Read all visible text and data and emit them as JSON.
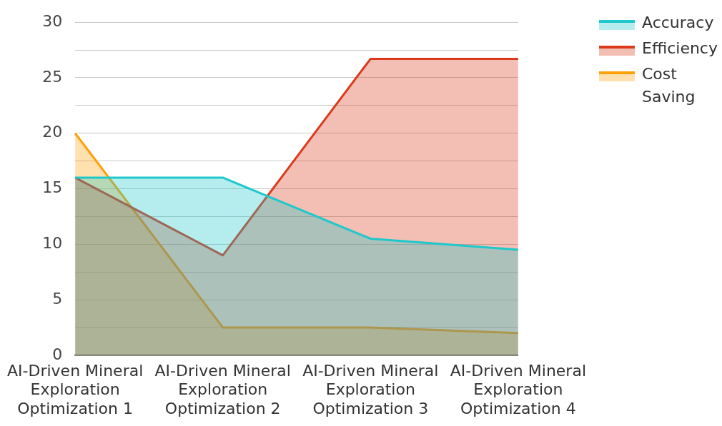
{
  "chart_data": {
    "type": "area",
    "categories": [
      "AI-Driven Mineral Exploration Optimization 1",
      "AI-Driven Mineral Exploration Optimization 2",
      "AI-Driven Mineral Exploration Optimization 3",
      "AI-Driven Mineral Exploration Optimization 4"
    ],
    "series": [
      {
        "name": "Accuracy",
        "color": "#1ec8cc",
        "values": [
          16,
          16,
          10.5,
          9.5
        ]
      },
      {
        "name": "Efficiency",
        "color": "#dc3a1c",
        "values": [
          16,
          9,
          26.7,
          26.7
        ]
      },
      {
        "name": "Cost Saving",
        "color": "#ffa00a",
        "values": [
          20,
          2.5,
          2.5,
          2
        ]
      }
    ],
    "ylim": [
      0,
      30
    ],
    "yticks": [
      0,
      {
        "value": 2.5,
        "label": null
      },
      5,
      {
        "value": 7.5,
        "label": null
      },
      10,
      {
        "value": 12.5,
        "label": null
      },
      15,
      {
        "value": 17.5,
        "label": null
      },
      20,
      {
        "value": 22.5,
        "label": null
      },
      25,
      {
        "value": 27.5,
        "label": null
      },
      30
    ],
    "grid": "y",
    "legend": "right",
    "marker": "none",
    "line_style": "solid"
  }
}
